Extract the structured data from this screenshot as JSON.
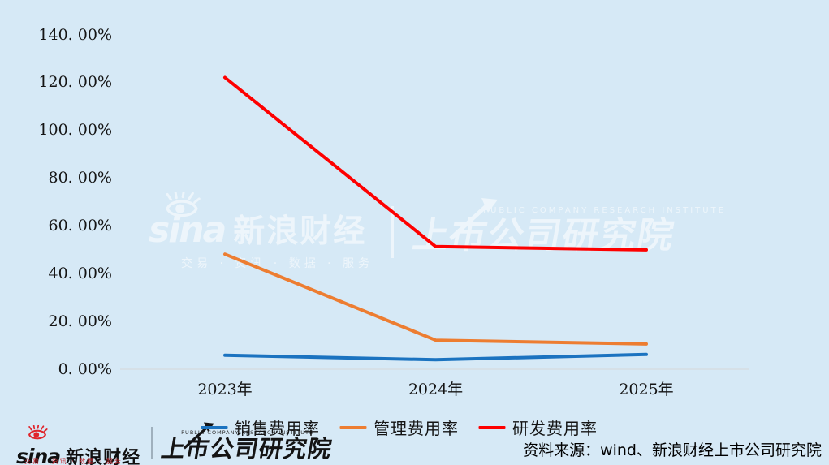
{
  "chart_data": {
    "type": "line",
    "categories": [
      "2023年",
      "2024年",
      "2025年"
    ],
    "series": [
      {
        "name": "销售费用率",
        "color": "#1b73c0",
        "values": [
          5.7,
          3.8,
          6.0
        ]
      },
      {
        "name": "管理费用率",
        "color": "#ed7d31",
        "values": [
          48.0,
          12.0,
          10.4
        ]
      },
      {
        "name": "研发费用率",
        "color": "#fe0000",
        "values": [
          122.0,
          51.2,
          49.8
        ]
      }
    ],
    "title": "",
    "xlabel": "",
    "ylabel": "",
    "ylim": [
      0,
      140
    ],
    "y_tick_step": 20,
    "y_tick_labels": [
      "0. 00%",
      "20. 00%",
      "40. 00%",
      "60. 00%",
      "80. 00%",
      "100. 00%",
      "120. 00%",
      "140. 00%"
    ],
    "grid": false,
    "legend_position": "bottom",
    "axis_line_color": "#d6dde2",
    "background_color": "#d6e9f6"
  },
  "watermark_center": {
    "sina_text": "sina",
    "brand": "新浪财经",
    "tagline": "交易 · 资讯 · 数据 · 服务",
    "institute_en": "PUBLIC COMPANY RESEARCH INSTITUTE",
    "institute": "上市公司研究院"
  },
  "footer": {
    "sina_text": "sina",
    "brand": "新浪财经",
    "tagline": "交易 · 资讯 · 数据 · 服务",
    "institute_en": "PUBLIC COMPANY RESEARCH INSTITUTE",
    "institute": "上市公司研究院",
    "source": "资料来源：wind、新浪财经上市公司研究院"
  }
}
